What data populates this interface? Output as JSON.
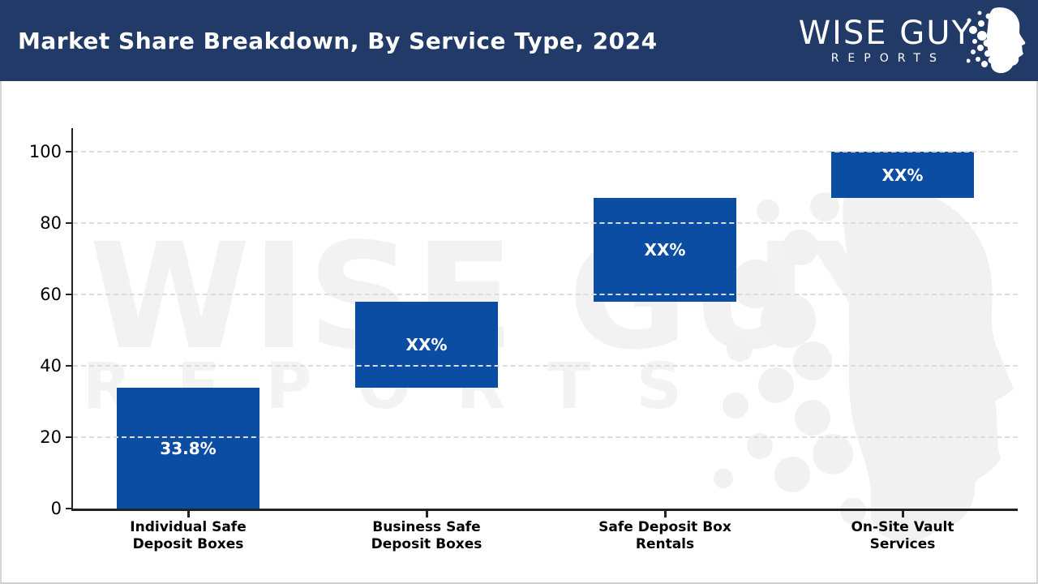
{
  "header": {
    "title": "Market Share Breakdown, By Service Type, 2024",
    "bg_color": "#213A67",
    "logo": {
      "name": "WISE GUY",
      "sub": "REPORTS"
    }
  },
  "watermark": {
    "line1": "WISE GUY",
    "line2": "REPORTS"
  },
  "chart_data": {
    "type": "bar",
    "variant": "floating-waterfall",
    "title": "Market Share Breakdown, By Service Type, 2024",
    "categories": [
      [
        "Individual Safe",
        "Deposit Boxes"
      ],
      [
        "Business Safe",
        "Deposit Boxes"
      ],
      [
        "Safe Deposit Box",
        "Rentals"
      ],
      [
        "On-Site Vault",
        "Services"
      ]
    ],
    "bars": [
      {
        "from": 0,
        "to": 33.8,
        "label": "33.8%"
      },
      {
        "from": 33.8,
        "to": 58,
        "label": "XX%"
      },
      {
        "from": 58,
        "to": 87,
        "label": "XX%"
      },
      {
        "from": 87,
        "to": 100,
        "label": "XX%"
      }
    ],
    "yticks": [
      0,
      20,
      40,
      60,
      80,
      100
    ],
    "ylim": [
      0,
      106
    ],
    "xlabel": "",
    "ylabel": "",
    "grid": {
      "horizontal": true,
      "style": "dashed",
      "above_bars": true,
      "color": "#dcdcdc"
    },
    "colors": {
      "bar": "#0B4DA2",
      "bar_label": "#ffffff",
      "axis": "#222222",
      "tick_label": "#000000"
    },
    "legend": null
  }
}
